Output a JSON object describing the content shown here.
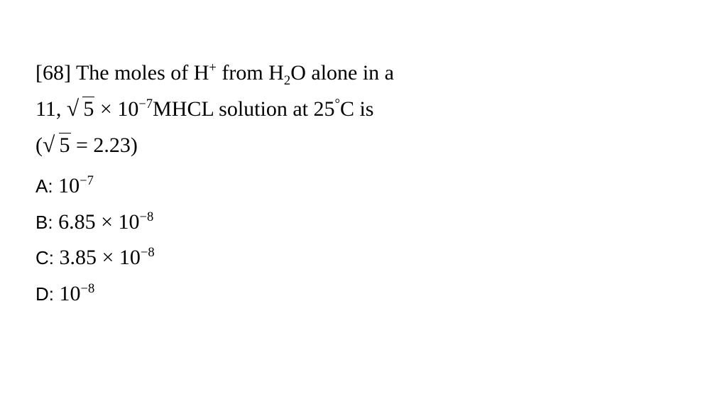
{
  "background_color": "#ffffff",
  "text_color": "#000000",
  "base_fontsize": 30,
  "question": {
    "number_bracketed": "[68]",
    "line1_pre": " The moles of ",
    "species1": "H",
    "species1_sup": "+",
    "from_text": " from ",
    "species2a": "H",
    "species2_sub": "2",
    "species2b": "O",
    "line1_post": " alone in a",
    "line2_num": "11, ",
    "sqrt_val": "5",
    "times": " × ",
    "exp_base": "10",
    "exp_sup": "−7",
    "unit": "MHCL",
    "soln_text": " solution at ",
    "temp": "25",
    "deg": "°",
    "temp_unit": "C",
    "is_text": " is",
    "paren_open": "(",
    "sqrt_val2": "5",
    "eq_text": " = 2.23)",
    "hint_sqrt5": "2.23"
  },
  "options": {
    "A": {
      "letter": "A:",
      "base": "10",
      "sup": "−7"
    },
    "B": {
      "letter": "B:",
      "coef": "6.85",
      "times": " × ",
      "base": "10",
      "sup": "−8"
    },
    "C": {
      "letter": "C:",
      "coef": "3.85",
      "times": " × ",
      "base": "10",
      "sup": "−8"
    },
    "D": {
      "letter": "D:",
      "base": "10",
      "sup": "−8"
    }
  }
}
